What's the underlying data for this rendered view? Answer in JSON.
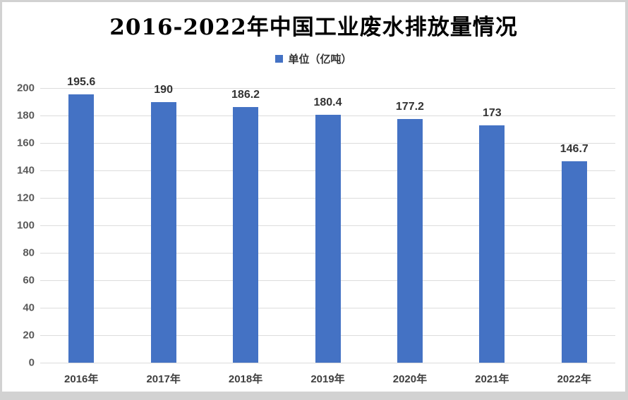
{
  "chart_data": {
    "type": "bar",
    "title": "2016-2022年中国工业废水排放量情况",
    "legend": "单位（亿吨）",
    "legend_position": "top",
    "categories": [
      "2016年",
      "2017年",
      "2018年",
      "2019年",
      "2020年",
      "2021年",
      "2022年"
    ],
    "values": [
      195.6,
      190,
      186.2,
      180.4,
      177.2,
      173,
      146.7
    ],
    "xlabel": "",
    "ylabel": "",
    "ylim": [
      0,
      200
    ],
    "ytick_step": 20,
    "yticks": [
      0,
      20,
      40,
      60,
      80,
      100,
      120,
      140,
      160,
      180,
      200
    ],
    "grid": "horizontal",
    "colors": {
      "bar": "#4472C4",
      "gridline": "#dcdcdc",
      "axis_tick_text": "#595959",
      "value_label_text": "#333333",
      "category_label_text": "#3f3f3f",
      "frame_border": "#d2d2d2",
      "background": "#ffffff"
    }
  }
}
